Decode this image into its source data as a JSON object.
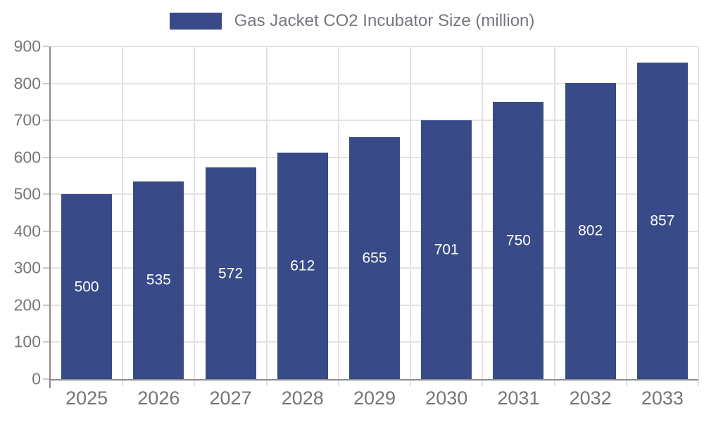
{
  "chart_data": {
    "type": "bar",
    "title": "Gas Jacket CO2 Incubator Size (million)",
    "series_name": "Gas Jacket CO2 Incubator Size (million)",
    "categories": [
      "2025",
      "2026",
      "2027",
      "2028",
      "2029",
      "2030",
      "2031",
      "2032",
      "2033"
    ],
    "values": [
      500,
      535,
      572,
      612,
      655,
      701,
      750,
      802,
      857
    ],
    "xlabel": "",
    "ylabel": "",
    "ylim": [
      0,
      900
    ],
    "ytick_interval": 100,
    "yticks": [
      0,
      100,
      200,
      300,
      400,
      500,
      600,
      700,
      800,
      900
    ],
    "grid": true,
    "legend_position": "top-center",
    "bar_value_labels": "inside-center",
    "colors": {
      "bar": "#384a87",
      "bar_label": "#ffffff",
      "gridline": "#e2e2e4",
      "axis_line": "#8c8c8c",
      "tick_label": "#757575",
      "legend_text": "#76767e",
      "background": "#ffffff"
    }
  }
}
